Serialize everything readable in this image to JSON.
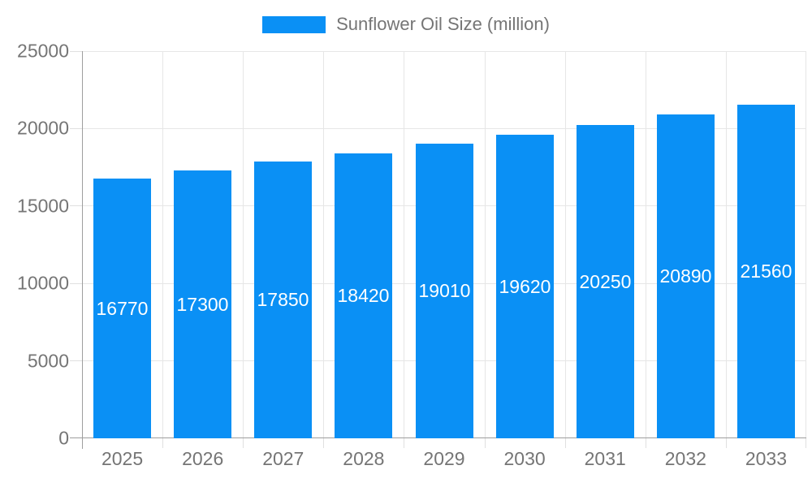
{
  "legend": {
    "label": "Sunflower Oil Size (million)"
  },
  "colors": {
    "bar": "#0a90f5",
    "grid": "#e6e6e6",
    "axis": "#9e9e9e",
    "minor_tick": "#e0e0e0",
    "axis_label": "#757575",
    "bar_label": "#ffffff",
    "background": "#ffffff"
  },
  "chart_data": {
    "type": "bar",
    "title": "Sunflower Oil Size (million)",
    "categories": [
      "2025",
      "2026",
      "2027",
      "2028",
      "2029",
      "2030",
      "2031",
      "2032",
      "2033"
    ],
    "values": [
      16770,
      17300,
      17850,
      18420,
      19010,
      19620,
      20250,
      20890,
      21560
    ],
    "xlabel": "",
    "ylabel": "",
    "ylim": [
      0,
      25000
    ],
    "yticks": [
      0,
      5000,
      10000,
      15000,
      20000,
      25000
    ],
    "grid": "horizontal-and-category-separators",
    "legend_position": "top-center",
    "bar_label_style": "white-centered-inside-bar",
    "bar_width_fraction": 0.72
  }
}
